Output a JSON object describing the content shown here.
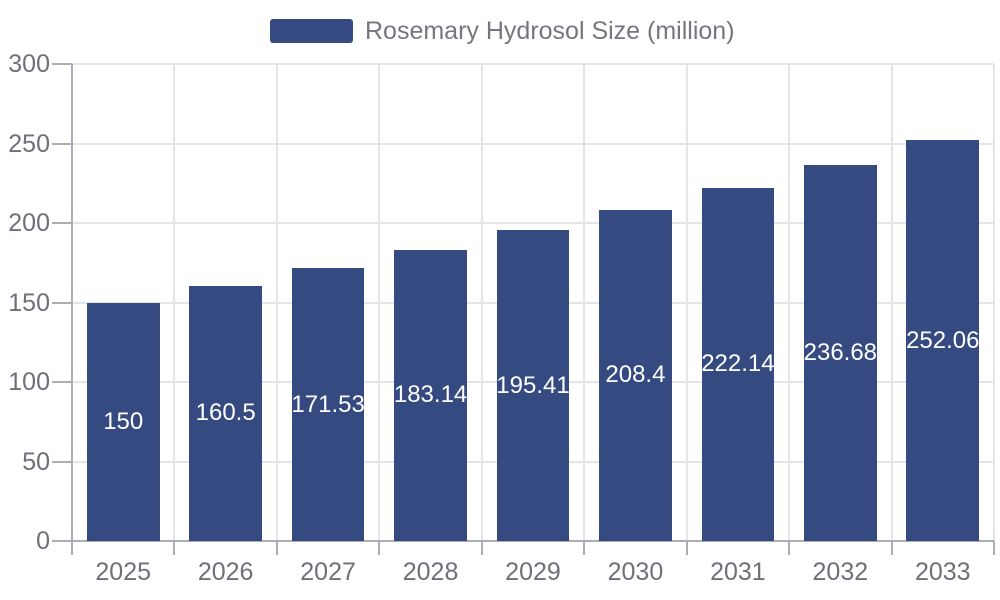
{
  "chart_data": {
    "type": "bar",
    "title": "Rosemary Hydrosol Size (million)",
    "categories": [
      "2025",
      "2026",
      "2027",
      "2028",
      "2029",
      "2030",
      "2031",
      "2032",
      "2033"
    ],
    "values": [
      150,
      160.5,
      171.53,
      183.14,
      195.41,
      208.4,
      222.14,
      236.68,
      252.06
    ],
    "value_labels": [
      "150",
      "160.5",
      "171.53",
      "183.14",
      "195.41",
      "208.4",
      "222.14",
      "236.68",
      "252.06"
    ],
    "xlabel": "",
    "ylabel": "",
    "ylim": [
      0,
      300
    ],
    "yticks": [
      0,
      50,
      100,
      150,
      200,
      250,
      300
    ],
    "grid": true,
    "legend": {
      "label": "Rosemary Hydrosol Size (million)",
      "position": "top-center"
    },
    "colors": {
      "bar": "#354a81",
      "grid": "#e3e5ea",
      "axis": "#abaeb5",
      "axis_text": "#6e7079",
      "legend_text": "#74777d",
      "value_label": "#ffffff",
      "background": "#ffffff"
    }
  }
}
